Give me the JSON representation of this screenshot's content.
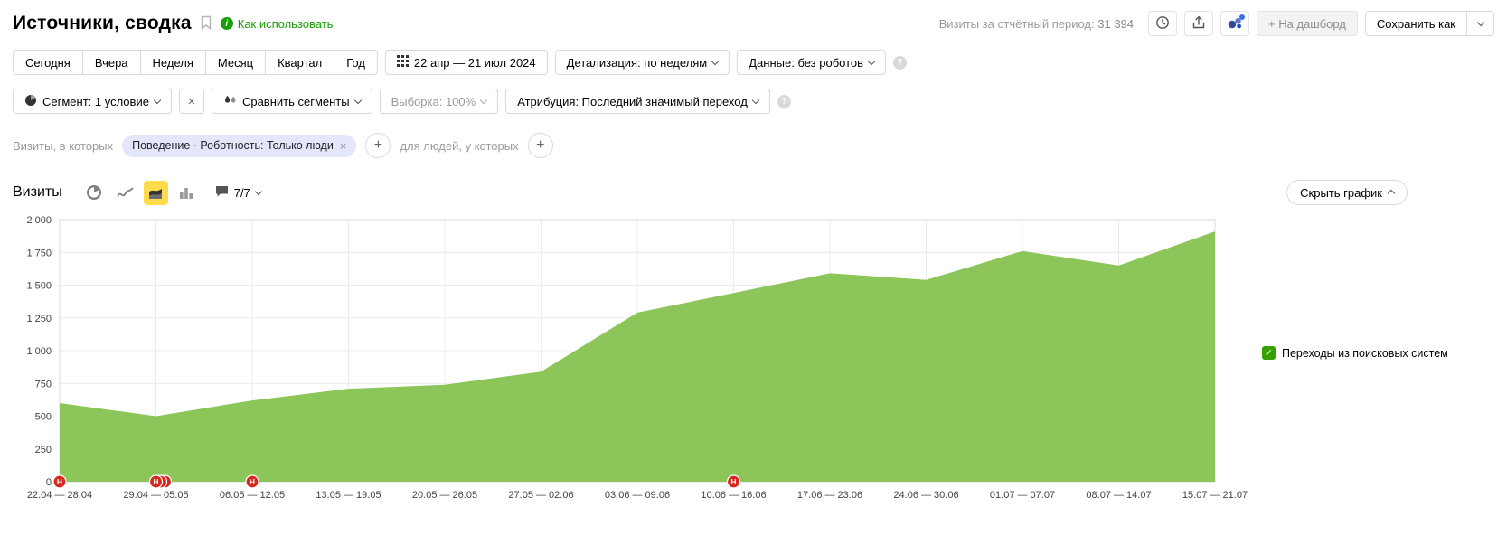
{
  "header": {
    "title": "Источники, сводка",
    "how_to_use_link": "Как использовать",
    "visits_period_label": "Визиты за отчётный период:",
    "visits_period_value": "31 394",
    "dashboard_button": "+ На дашборд",
    "save_as_button": "Сохранить как"
  },
  "period_bar": {
    "presets": [
      "Сегодня",
      "Вчера",
      "Неделя",
      "Месяц",
      "Квартал",
      "Год"
    ],
    "date_range": "22 апр — 21 июл 2024",
    "detalization": "Детализация: по неделям",
    "data_mode": "Данные: без роботов"
  },
  "segment_bar": {
    "segment": "Сегмент: 1 условие",
    "compare_segments": "Сравнить сегменты",
    "sampling": "Выборка: 100%",
    "attribution": "Атрибуция: Последний значимый переход"
  },
  "filter_bar": {
    "visits_in_which": "Визиты, в которых",
    "segment_chip": "Поведение · Роботность: Только люди",
    "for_people": "для людей, у которых"
  },
  "chart_header": {
    "title": "Визиты",
    "comments_count": "7/7",
    "hide_chart_button": "Скрыть график"
  },
  "legend": {
    "label": "Переходы из поисковых систем",
    "checkbox_color": "#36a000"
  },
  "chart_data": {
    "type": "area",
    "title": "Визиты",
    "series_name": "Переходы из поисковых систем",
    "categories": [
      "22.04 — 28.04",
      "29.04 — 05.05",
      "06.05 — 12.05",
      "13.05 — 19.05",
      "20.05 — 26.05",
      "27.05 — 02.06",
      "03.06 — 09.06",
      "10.06 — 16.06",
      "17.06 — 23.06",
      "24.06 — 30.06",
      "01.07 — 07.07",
      "08.07 — 14.07",
      "15.07 — 21.07"
    ],
    "values": [
      600,
      500,
      620,
      710,
      740,
      840,
      1290,
      1440,
      1590,
      1540,
      1760,
      1650,
      1910
    ],
    "ylim": [
      0,
      2000
    ],
    "yticks": [
      0,
      250,
      500,
      750,
      1000,
      1250,
      1500,
      1750,
      2000
    ],
    "ytick_labels": [
      "0",
      "250",
      "500",
      "750",
      "1 000",
      "1 250",
      "1 500",
      "1 750",
      "2 000"
    ],
    "area_color": "#8cc559",
    "grid": true,
    "legend_position": "right",
    "annotations": {
      "label": "Н",
      "color": "#d6281e",
      "positions": [
        {
          "index": 0,
          "count": 1
        },
        {
          "index": 1,
          "count": 3
        },
        {
          "index": 2,
          "count": 1
        },
        {
          "index": 7,
          "count": 1
        }
      ]
    }
  }
}
